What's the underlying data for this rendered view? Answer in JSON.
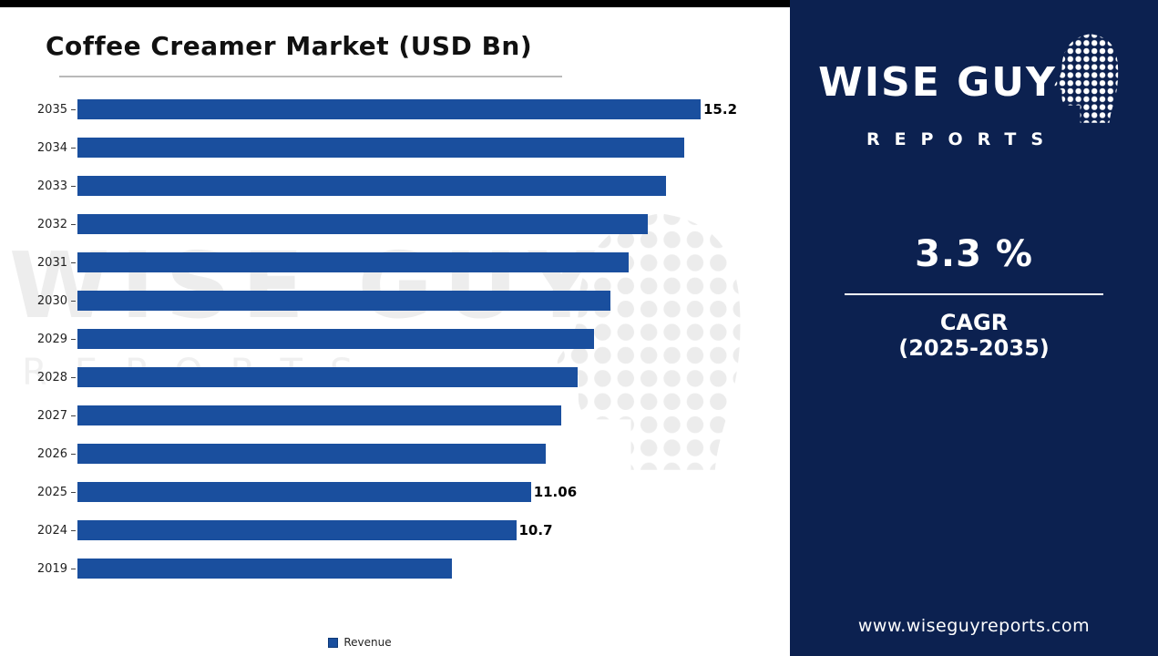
{
  "chart_data": {
    "type": "bar",
    "orientation": "horizontal",
    "title": "Coffee Creamer Market (USD Bn)",
    "categories": [
      "2035",
      "2034",
      "2033",
      "2032",
      "2031",
      "2030",
      "2029",
      "2028",
      "2027",
      "2026",
      "2025",
      "2024",
      "2019"
    ],
    "values": [
      15.2,
      14.8,
      14.35,
      13.9,
      13.45,
      13.0,
      12.6,
      12.2,
      11.8,
      11.43,
      11.06,
      10.7,
      9.14
    ],
    "value_labels": [
      "15.2",
      "",
      "",
      "",
      "",
      "",
      "",
      "",
      "",
      "",
      "11.06",
      "10.7",
      ""
    ],
    "xlim": [
      0,
      17
    ],
    "xlabel": "",
    "ylabel": "",
    "grid": false,
    "bar_color": "#1a4f9e",
    "legend_position": "bottom",
    "legend": [
      {
        "label": "Revenue",
        "color": "#1a4f9e"
      }
    ]
  },
  "watermark": {
    "line1": "WISE GUY",
    "line2": "REPORTS"
  },
  "panel": {
    "background": "#0c2150",
    "brand_line1": "WISE GUY",
    "brand_line2": "REPORTS",
    "cagr_value": "3.3 %",
    "cagr_label": "CAGR",
    "cagr_range": "(2025-2035)",
    "website": "www.wiseguyreports.com"
  }
}
